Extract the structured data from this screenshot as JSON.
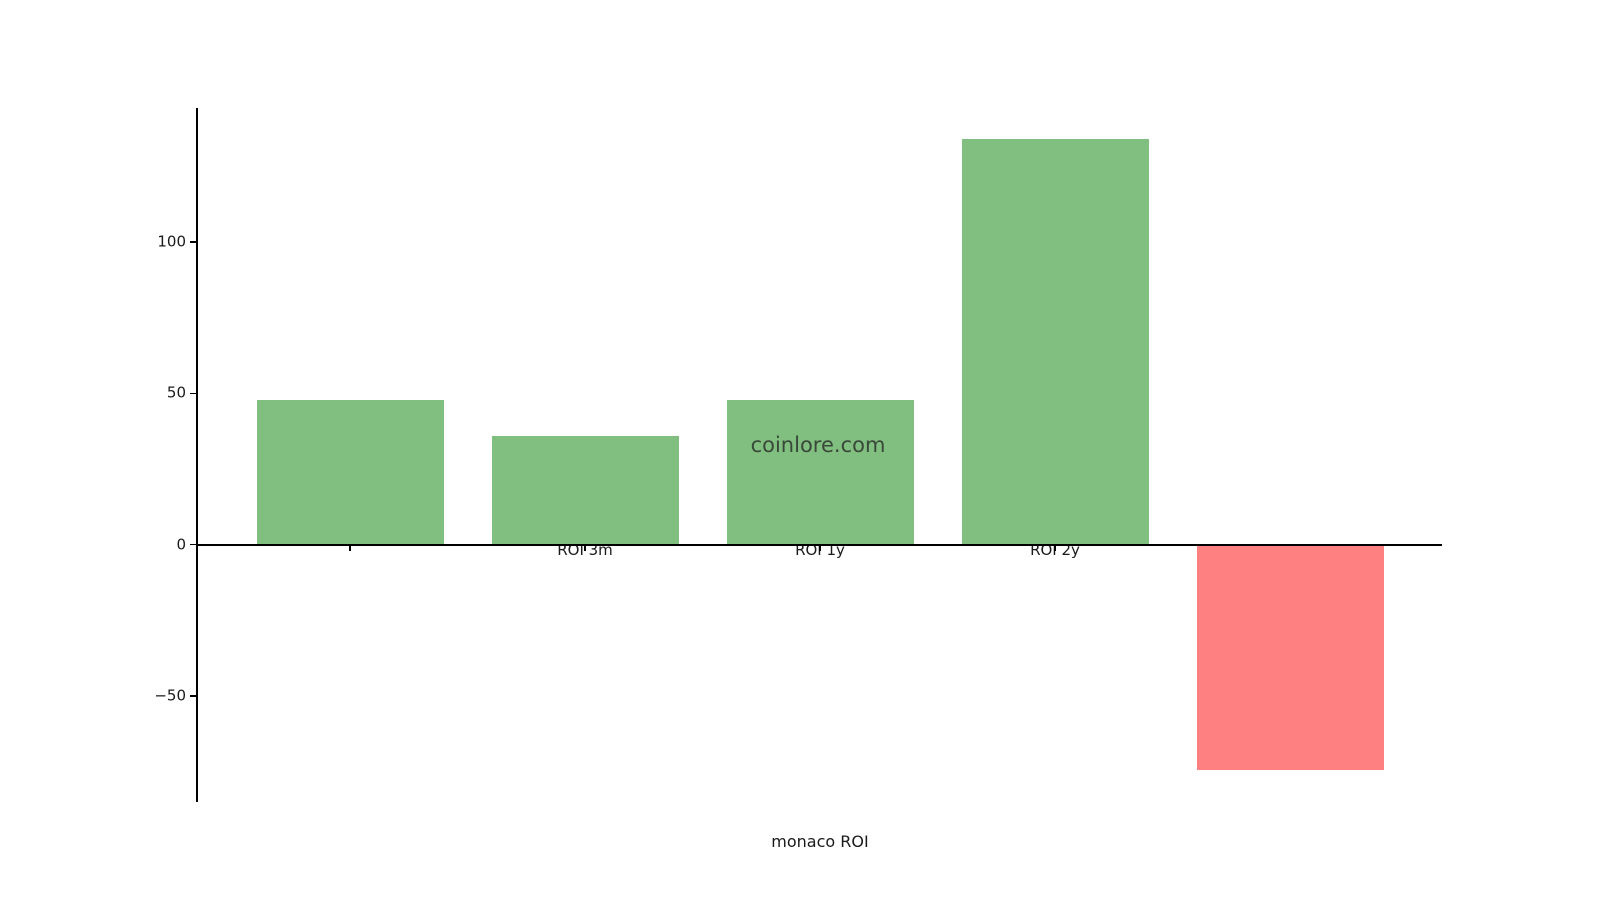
{
  "chart_data": {
    "type": "bar",
    "xlabel": "monaco ROI",
    "watermark": "coinlore.com",
    "categories": [
      "",
      "ROI 3m",
      "ROI 1y",
      "ROI 2y",
      ""
    ],
    "values": [
      48,
      36,
      48,
      134,
      -74
    ],
    "bar_colors": [
      "#80bf80",
      "#80bf80",
      "#80bf80",
      "#80bf80",
      "#ff8080"
    ],
    "positive_color": "#80bf80",
    "negative_color": "#ff8080",
    "yticks": [
      {
        "value": -50,
        "label": "−50"
      },
      {
        "value": 0,
        "label": "0"
      },
      {
        "value": 50,
        "label": "50"
      },
      {
        "value": 100,
        "label": "100"
      }
    ],
    "ylim": [
      -79,
      145
    ],
    "grid": false,
    "legend": false,
    "axis_color": "#000000",
    "text_color": "#1a1a1a"
  }
}
